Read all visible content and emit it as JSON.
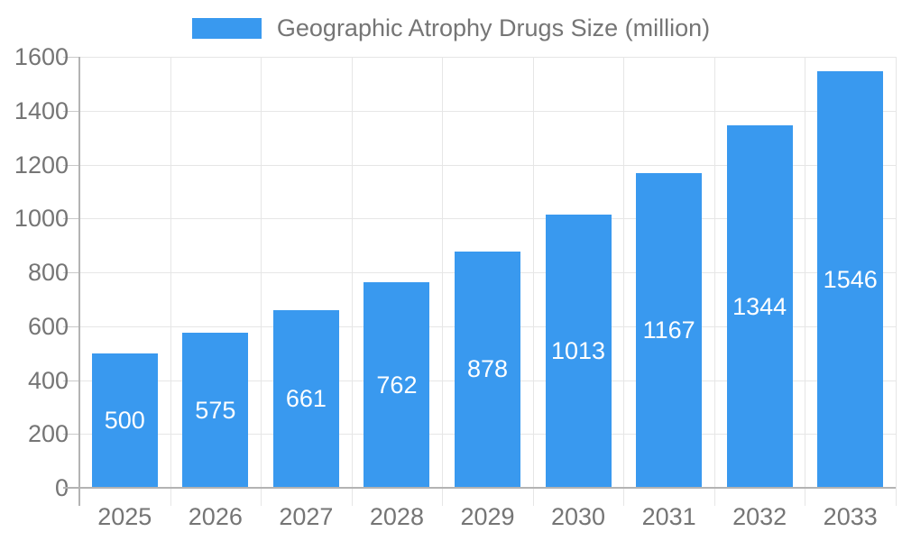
{
  "chart_data": {
    "type": "bar",
    "title": "Geographic Atrophy Drugs Size (million)",
    "categories": [
      "2025",
      "2026",
      "2027",
      "2028",
      "2029",
      "2030",
      "2031",
      "2032",
      "2033"
    ],
    "values": [
      500,
      575,
      661,
      762,
      878,
      1013,
      1167,
      1344,
      1546
    ],
    "xlabel": "",
    "ylabel": "",
    "ylim": [
      0,
      1600
    ],
    "ytick_step": 200,
    "yticks": [
      0,
      200,
      400,
      600,
      800,
      1000,
      1200,
      1400,
      1600
    ],
    "grid": true,
    "legend_position": "top-center",
    "value_label_position": "inside-center",
    "colors": {
      "bar": "#3999ef",
      "value_label": "#ffffff",
      "axis_text": "#757575",
      "grid": "#e6e6e6",
      "axis_line": "#b3b3b3",
      "tick": "#c9c9c9",
      "background": "#ffffff"
    }
  }
}
